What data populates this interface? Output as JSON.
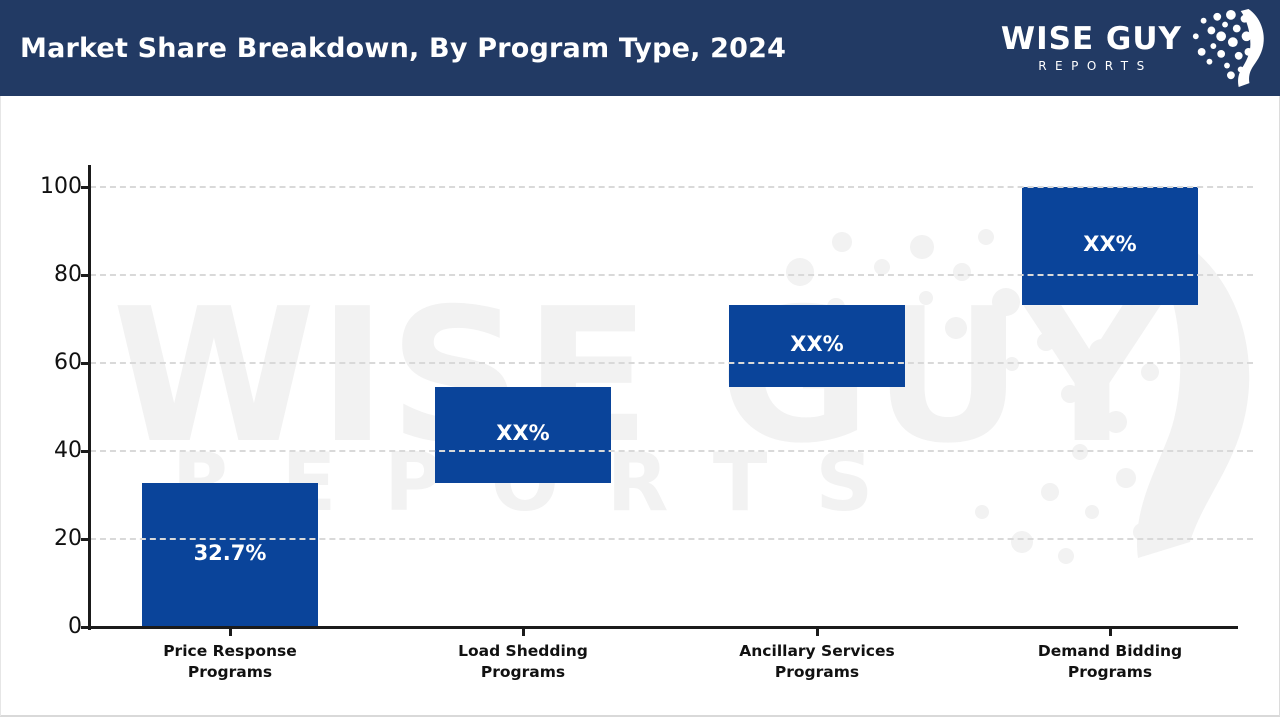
{
  "header": {
    "title": "Market Share Breakdown, By Program Type, 2024",
    "logo": {
      "name": "WISE GUY",
      "sub": "REPORTS"
    }
  },
  "watermark": {
    "name": "WISE GUY",
    "sub": "REPORTS"
  },
  "chart_data": {
    "type": "bar",
    "subtype": "floating-segment-waterfall",
    "title": "Market Share Breakdown, By Program Type, 2024",
    "categories": [
      "Price Response Programs",
      "Load Shedding Programs",
      "Ancillary Services Programs",
      "Demand Bidding Programs"
    ],
    "category_lines": [
      [
        "Price Response",
        "Programs"
      ],
      [
        "Load Shedding",
        "Programs"
      ],
      [
        "Ancillary Services",
        "Programs"
      ],
      [
        "Demand Bidding",
        "Programs"
      ]
    ],
    "bars": [
      {
        "category": "Price Response Programs",
        "start": 0,
        "end": 32.7,
        "label": "32.7%"
      },
      {
        "category": "Load Shedding Programs",
        "start": 32.7,
        "end": 54.6,
        "label": "XX%"
      },
      {
        "category": "Ancillary Services Programs",
        "start": 54.6,
        "end": 73.2,
        "label": "XX%"
      },
      {
        "category": "Demand Bidding Programs",
        "start": 73.2,
        "end": 100,
        "label": "XX%"
      }
    ],
    "xlabel": "",
    "ylabel": "",
    "ylim": [
      0,
      100
    ],
    "yticks": [
      0,
      20,
      40,
      60,
      80,
      100
    ],
    "grid": "horizontal-dashed",
    "grid_above_bars": true,
    "legend": "none",
    "bar_color": "#0a449a",
    "bar_label_color": "#ffffff"
  },
  "colors": {
    "header_bg": "#223a64",
    "bar": "#0a449a",
    "watermark": "#f2f2f2",
    "grid": "#d9d9d9",
    "axis": "#1b1b1b",
    "text": "#111111"
  }
}
